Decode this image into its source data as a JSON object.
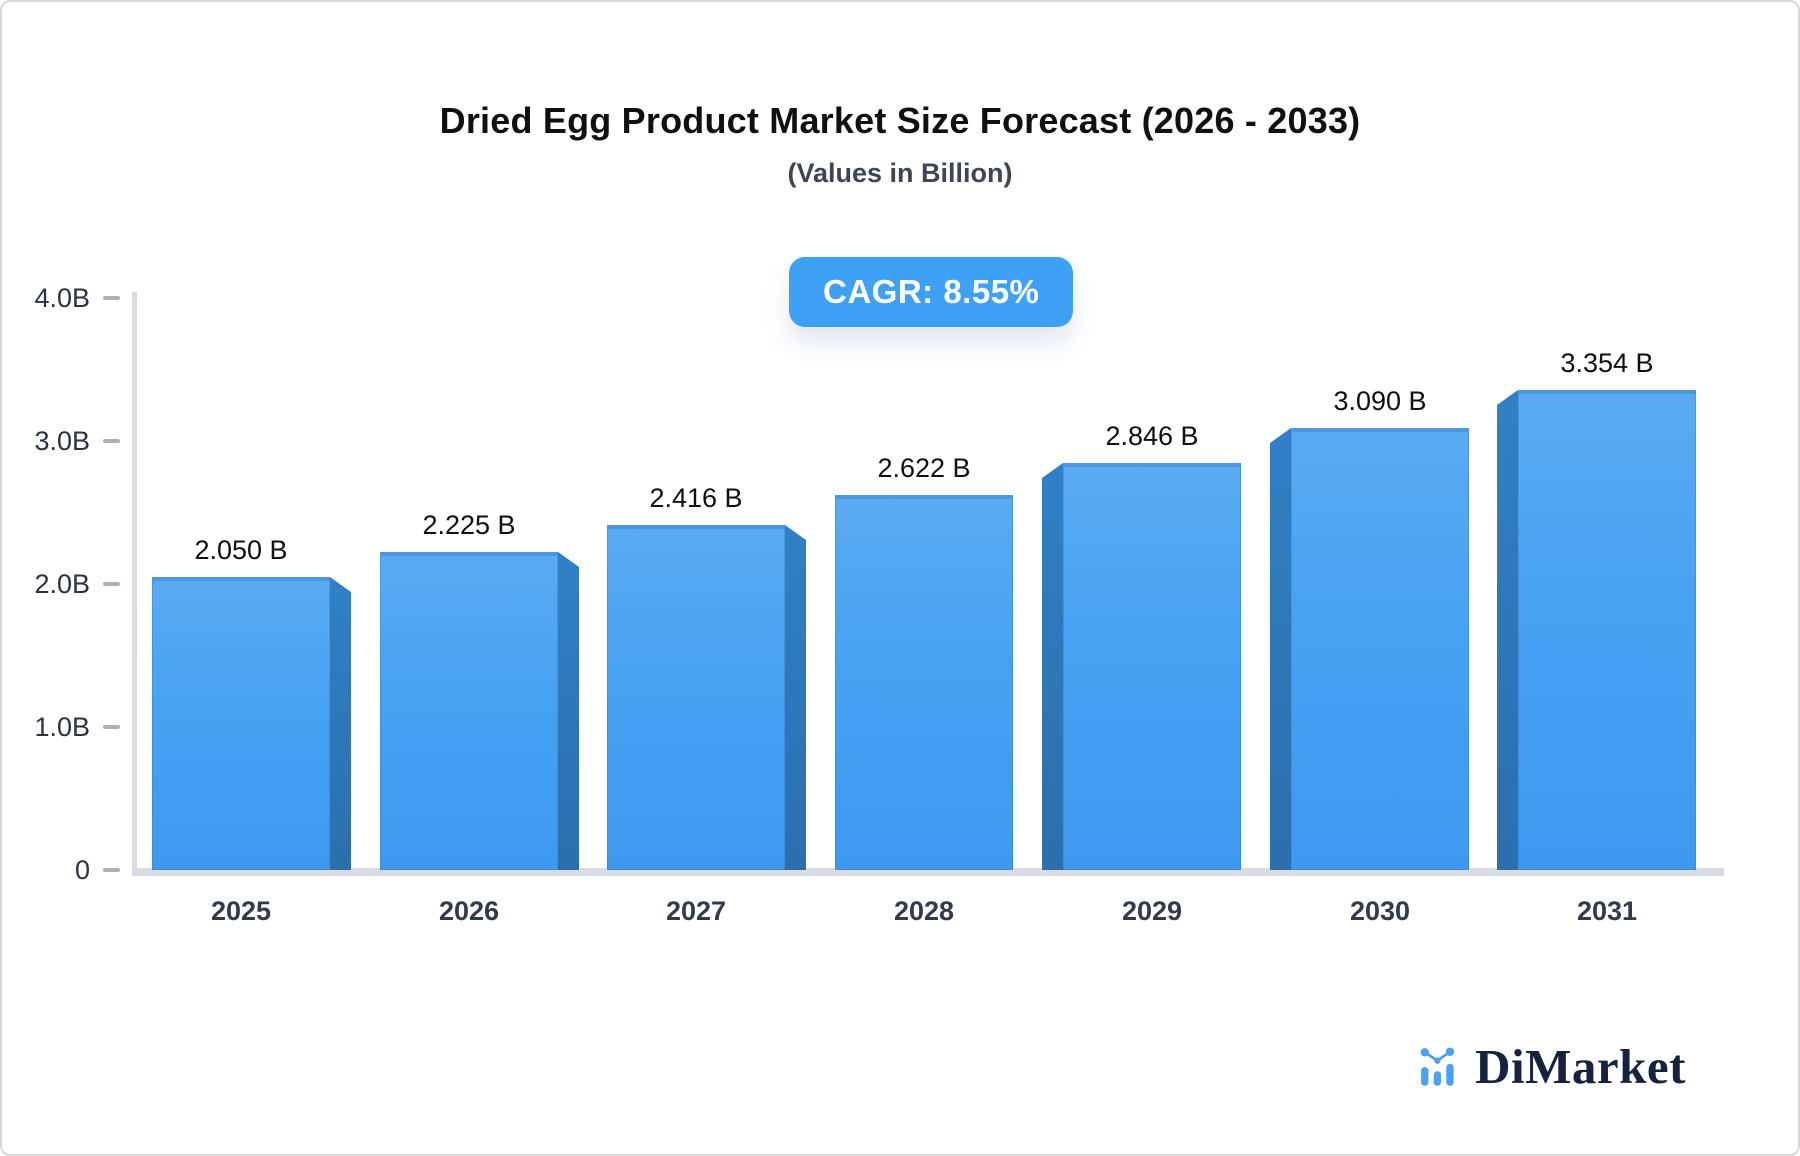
{
  "header": {
    "title": "Dried Egg Product Market Size Forecast (2026 - 2033)",
    "subtitle": "(Values in Billion)"
  },
  "badge": {
    "label": "CAGR: 8.55%",
    "bg_color": "#3EA1F6",
    "text_color": "#FFFFFF"
  },
  "chart_data": {
    "type": "bar",
    "title": "Dried Egg Product Market Size Forecast (2026 - 2033)",
    "subtitle": "(Values in Billion)",
    "categories": [
      "2025",
      "2026",
      "2027",
      "2028",
      "2029",
      "2030",
      "2031"
    ],
    "values": [
      2.05,
      2.225,
      2.416,
      2.622,
      2.846,
      3.09,
      3.354
    ],
    "value_labels": [
      "2.050 B",
      "2.225 B",
      "2.416 B",
      "2.622 B",
      "2.846 B",
      "3.090 B",
      "3.354 B"
    ],
    "ylim": [
      0,
      4.0
    ],
    "y_ticks": [
      {
        "label": "4.0B",
        "value": 4.0
      },
      {
        "label": "3.0B",
        "value": 3.0
      },
      {
        "label": "2.0B",
        "value": 2.0
      },
      {
        "label": "1.0B",
        "value": 1.0
      },
      {
        "label": "0",
        "value": 0
      }
    ],
    "grid": false,
    "legend": false,
    "bar_face_color": "#42A0F2",
    "bar_side_color": "#2E78BC",
    "axis_color": "#D9DCE2"
  },
  "logo": {
    "name": "DiMarket",
    "icon": "mini-bar-chart-icon",
    "text_color": "#16233E",
    "icon_color": "#4AA1F7"
  }
}
